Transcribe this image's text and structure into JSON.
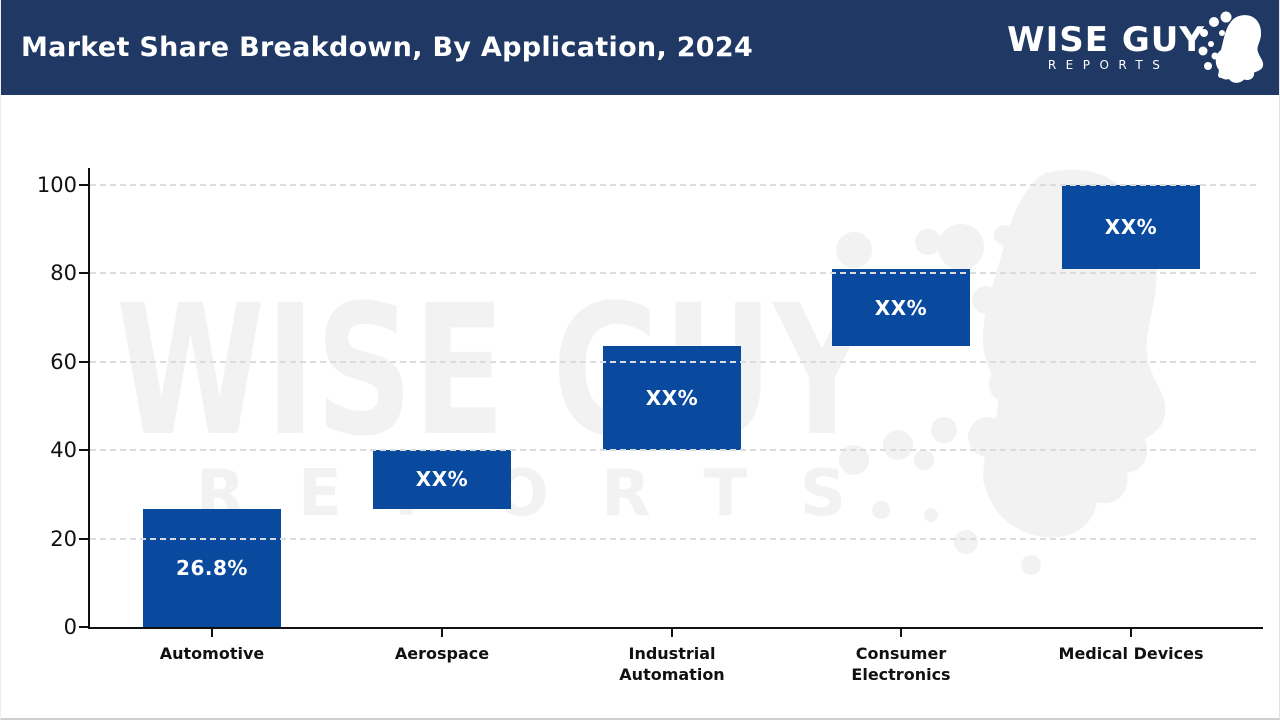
{
  "header": {
    "title": "Market Share Breakdown, By Application, 2024",
    "logo": {
      "line1": "WISE GUY",
      "line2": "REPORTS"
    }
  },
  "watermark": {
    "line1": "WISE GUY",
    "line2": "R E P O R T S"
  },
  "chart_data": {
    "type": "bar",
    "subtype": "waterfall-floating-bars",
    "title": "Market Share Breakdown, By Application, 2024",
    "categories": [
      "Automotive",
      "Aerospace",
      "Industrial\nAutomation",
      "Consumer\nElectronics",
      "Medical Devices"
    ],
    "segments": [
      {
        "start": 0,
        "end": 26.8,
        "label": "26.8%"
      },
      {
        "start": 26.8,
        "end": 40,
        "label": "XX%"
      },
      {
        "start": 40,
        "end": 63.5,
        "label": "XX%"
      },
      {
        "start": 63.5,
        "end": 81,
        "label": "XX%"
      },
      {
        "start": 81,
        "end": 100,
        "label": "XX%"
      }
    ],
    "values_segment_heights": [
      26.8,
      13.2,
      23.5,
      17.5,
      19
    ],
    "xlabel": "",
    "ylabel": "",
    "ylim": [
      0,
      100
    ],
    "yticks": [
      0,
      20,
      40,
      60,
      80,
      100
    ],
    "grid": "horizontal dashed, drawn above bars",
    "legend": "none"
  },
  "colors": {
    "header_bg": "#1f3864",
    "bar": "#0a4a9e",
    "grid": "#dcdcdc",
    "axis": "#111111",
    "bar_label_text": "#ffffff",
    "tick_text": "#111111",
    "watermark": "#f2f2f2"
  }
}
